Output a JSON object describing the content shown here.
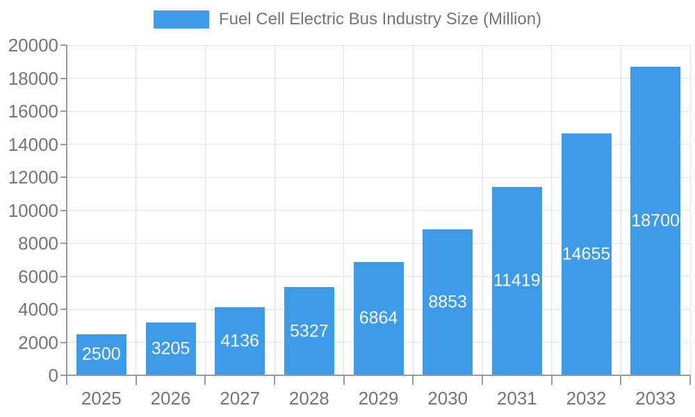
{
  "chart_data": {
    "type": "bar",
    "title": "Fuel Cell Electric Bus Industry Size (Million)",
    "categories": [
      "2025",
      "2026",
      "2027",
      "2028",
      "2029",
      "2030",
      "2031",
      "2032",
      "2033"
    ],
    "values": [
      2500,
      3205,
      4136,
      5327,
      6864,
      8853,
      11419,
      14655,
      18700
    ],
    "xlabel": "",
    "ylabel": "",
    "ylim": [
      0,
      20000
    ],
    "ytick_step": 2000,
    "ytick_labels": [
      "0",
      "2000",
      "4000",
      "6000",
      "8000",
      "10000",
      "12000",
      "14000",
      "16000",
      "18000",
      "20000"
    ],
    "grid": "on",
    "legend_position": "top",
    "colors": {
      "bar": "#3D9BE9",
      "value_label": "#FFFFFF",
      "axis_text": "#757575",
      "axis_line": "#9A9A9A",
      "gridline": "#E2E2E2",
      "background": "#FFFFFF"
    }
  }
}
